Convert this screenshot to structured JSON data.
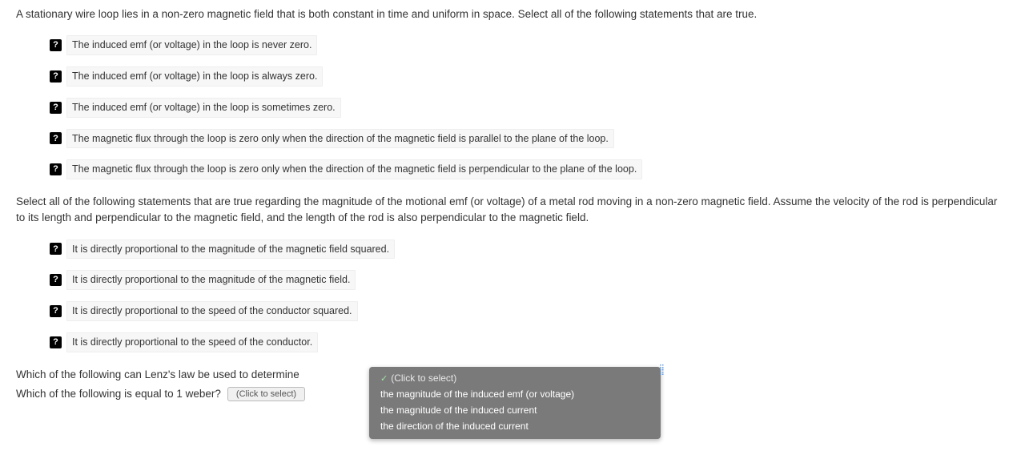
{
  "question1": {
    "prompt": "A stationary wire loop lies in a non-zero magnetic field that is both constant in time and uniform in space. Select all of the following statements that are true.",
    "options": [
      "The induced emf (or voltage) in the loop is never zero.",
      "The induced emf (or voltage) in the loop is always zero.",
      "The induced emf (or voltage) in the loop is sometimes zero.",
      "The magnetic flux through the loop is zero only when the direction of the magnetic field is parallel to the plane of the loop.",
      "The magnetic flux through the loop is zero only when the direction of the magnetic field is perpendicular to the plane of the loop."
    ]
  },
  "question2": {
    "prompt": "Select all of the following statements that are true regarding the magnitude of the motional emf (or voltage) of a metal rod moving in a non-zero magnetic field. Assume the velocity of the rod is perpendicular to its length and perpendicular to the magnetic field, and the length of the rod is also perpendicular to the magnetic field.",
    "options": [
      "It is directly proportional to the magnitude of the magnetic field squared.",
      "It is directly proportional to the magnitude of the magnetic field.",
      "It is directly proportional to the speed of the conductor squared.",
      "It is directly proportional to the speed of the conductor."
    ]
  },
  "question3": {
    "prompt": "Which of the following can Lenz's law be used to determine",
    "select_placeholder": "(Click to select)",
    "dropdown_items": [
      "(Click to select)",
      "the magnitude of the induced emf (or voltage)",
      "the magnitude of the induced current",
      "the direction of the induced current"
    ]
  },
  "question4": {
    "prompt": "Which of the following is equal to 1 weber?",
    "select_placeholder": "(Click to select)"
  },
  "icon_glyph": "?",
  "colors": {
    "text": "#333333",
    "icon_bg": "#000000",
    "icon_fg": "#ffffff",
    "option_bg": "#f7f7f7",
    "option_border": "#eeeeee",
    "dropdown_bg": "#7a7a7a",
    "dropdown_fg": "#ffffff",
    "check": "#a8e0a8"
  }
}
